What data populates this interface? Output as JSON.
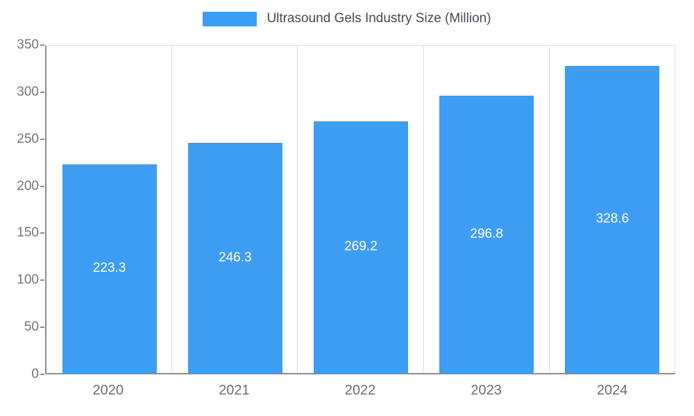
{
  "legend": {
    "label": "Ultrasound Gels Industry Size (Million)",
    "swatch_color": "#3d9df3"
  },
  "chart_data": {
    "type": "bar",
    "title": "Ultrasound Gels Industry Size (Million)",
    "categories": [
      "2020",
      "2021",
      "2022",
      "2023",
      "2024"
    ],
    "values": [
      223.3,
      246.3,
      269.2,
      296.8,
      328.6
    ],
    "xlabel": "",
    "ylabel": "",
    "ylim": [
      0,
      350
    ],
    "yticks": [
      0,
      50,
      100,
      150,
      200,
      250,
      300,
      350
    ],
    "bar_color": "#3d9df3",
    "bar_value_label_color": "#ffffff",
    "grid": "vertical",
    "legend_position": "top"
  }
}
